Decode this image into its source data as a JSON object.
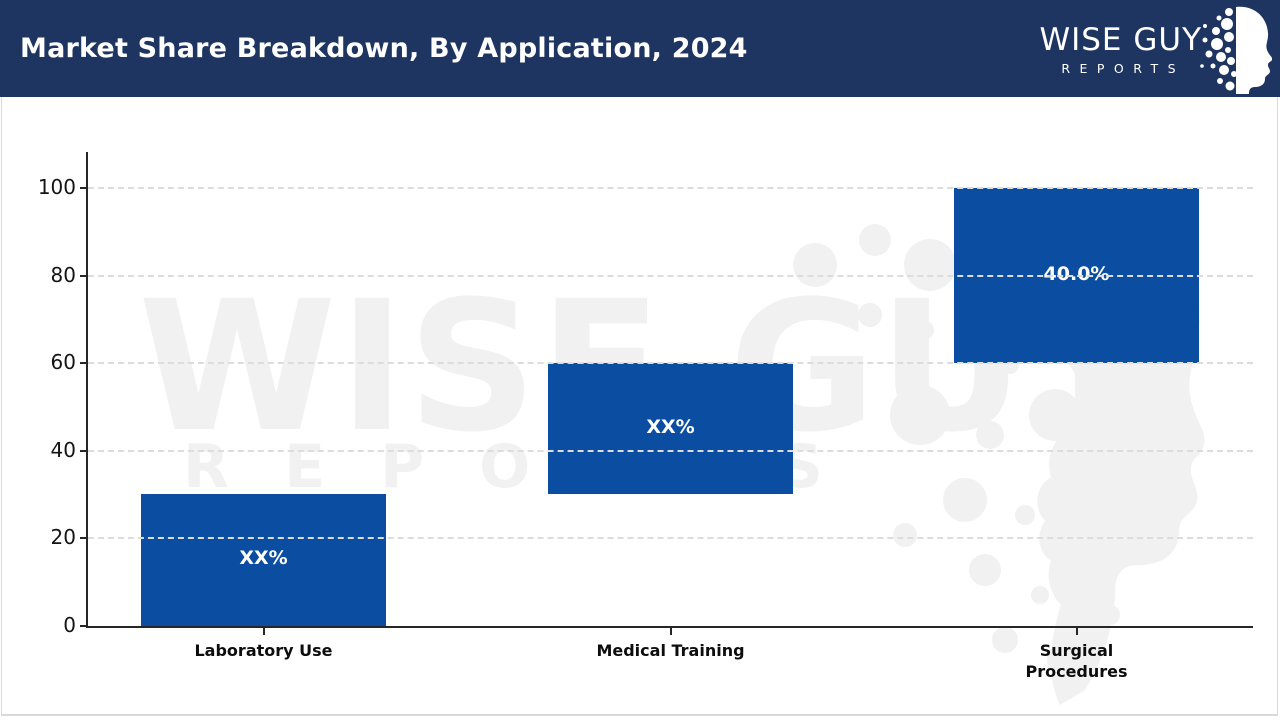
{
  "header": {
    "title": "Market Share Breakdown, By Application, 2024",
    "logo": {
      "brand": "WISE GUY",
      "sub": "REPORTS"
    }
  },
  "watermark": {
    "brand": "WISE GUY",
    "sub": "REPORTS"
  },
  "chart_data": {
    "type": "bar",
    "subtype": "floating-waterfall-bars",
    "title": "Market Share Breakdown, By Application, 2024",
    "categories": [
      "Laboratory Use",
      "Medical Training",
      "Surgical\nProcedures"
    ],
    "bars": [
      {
        "category": "Laboratory Use",
        "base": 0,
        "top": 30,
        "label": "XX%"
      },
      {
        "category": "Medical Training",
        "base": 30,
        "top": 60,
        "label": "XX%"
      },
      {
        "category": "Surgical Procedures",
        "base": 60,
        "top": 100,
        "label": "40.0%"
      }
    ],
    "y_ticks": [
      0,
      20,
      40,
      60,
      80,
      100
    ],
    "ylim": [
      0,
      108
    ],
    "xlabel": "",
    "ylabel": "",
    "grid": "horizontal-dashed",
    "legend": "none",
    "bar_color": "#0a4da1",
    "bar_label_color": "#ffffff"
  },
  "colors": {
    "header_bg": "#1e3461",
    "bar": "#0a4da1",
    "gridline": "#dcdcdc",
    "axis": "#262626",
    "watermark": "#f1f1f2"
  }
}
